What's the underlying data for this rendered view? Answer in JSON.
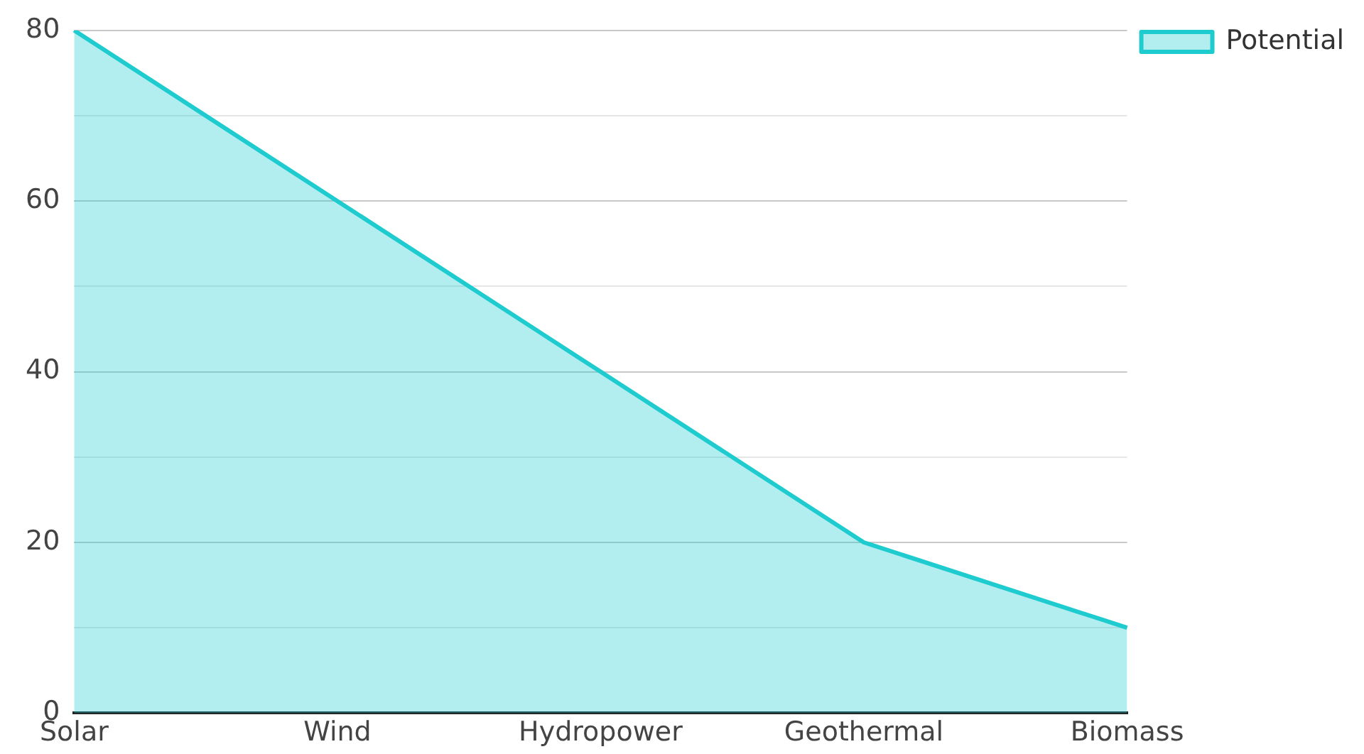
{
  "chart_data": {
    "type": "area",
    "categories": [
      "Solar",
      "Wind",
      "Hydropower",
      "Geothermal",
      "Biomass"
    ],
    "series": [
      {
        "name": "Potential",
        "color": "#1ecbcf",
        "values": [
          80,
          60,
          40,
          20,
          10
        ]
      }
    ],
    "ylim": [
      0,
      80
    ],
    "yticks": [
      0,
      {
        "value": 10,
        "label": null
      },
      20,
      {
        "value": 30,
        "label": null
      },
      40,
      {
        "value": 50,
        "label": null
      },
      60,
      {
        "value": 70,
        "label": null
      },
      80
    ],
    "grid": "y",
    "legend": "top right"
  }
}
